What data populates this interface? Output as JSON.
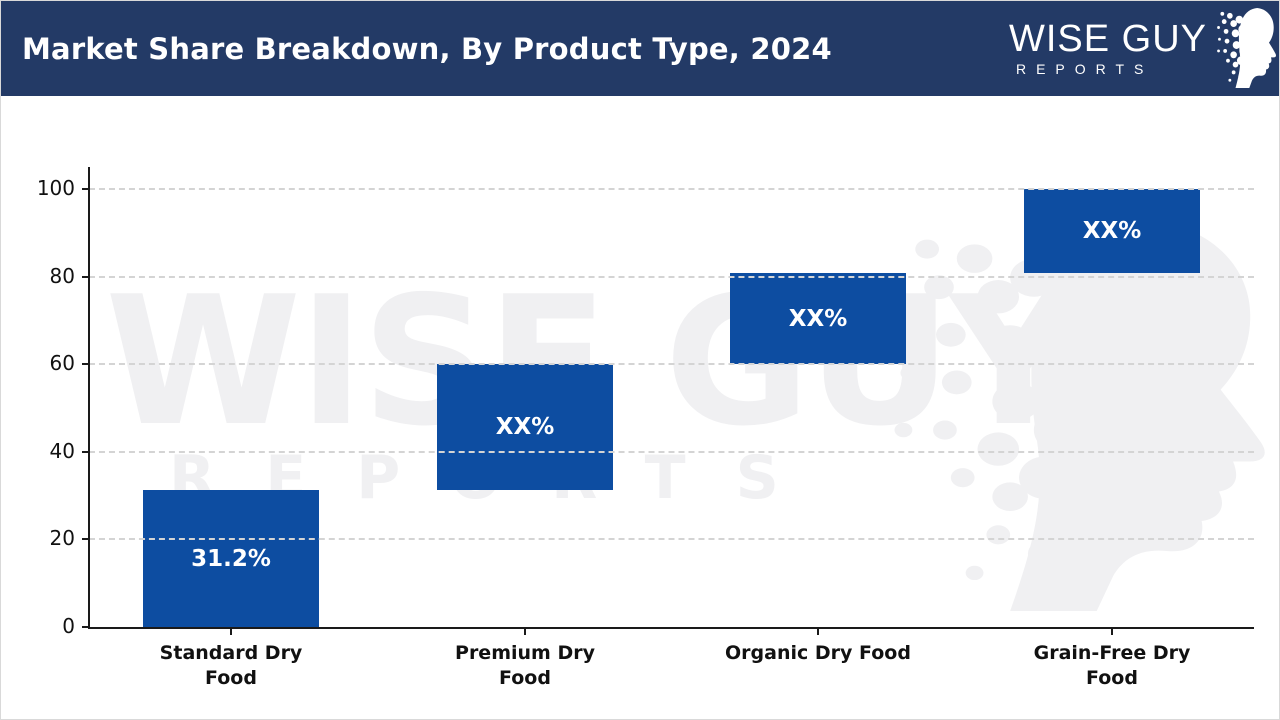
{
  "header": {
    "title": "Market Share Breakdown, By Product Type, 2024",
    "logo": {
      "line1": "WISE GUY",
      "line2": "REPORTS"
    }
  },
  "watermark": {
    "line1": "WISE GUY",
    "line2": "REPORTS"
  },
  "colors": {
    "header_bg": "#233a66",
    "bar": "#0d4da1",
    "bar_label": "#ffffff",
    "axis": "#1a1a1a",
    "grid": "#d4d4d4",
    "watermark": "#f0f0f2"
  },
  "chart_data": {
    "type": "bar",
    "subtype": "waterfall",
    "title": "Market Share Breakdown, By Product Type, 2024",
    "categories": [
      "Standard Dry Food",
      "Premium Dry Food",
      "Organic Dry Food",
      "Grain-Free Dry Food"
    ],
    "segments": [
      {
        "category": "Standard Dry Food",
        "start": 0,
        "end": 31.2,
        "label": "31.2%"
      },
      {
        "category": "Premium Dry Food",
        "start": 31.2,
        "end": 60,
        "label": "XX%"
      },
      {
        "category": "Organic Dry Food",
        "start": 60,
        "end": 80.8,
        "label": "XX%"
      },
      {
        "category": "Grain-Free Dry Food",
        "start": 80.8,
        "end": 100,
        "label": "XX%"
      }
    ],
    "y_ticks": [
      0,
      20,
      40,
      60,
      80,
      100
    ],
    "ylim": [
      0,
      100
    ],
    "xlabel": "",
    "ylabel": "",
    "grid": "horizontal-dashed",
    "legend": "none",
    "bar_color": "#0d4da1"
  }
}
